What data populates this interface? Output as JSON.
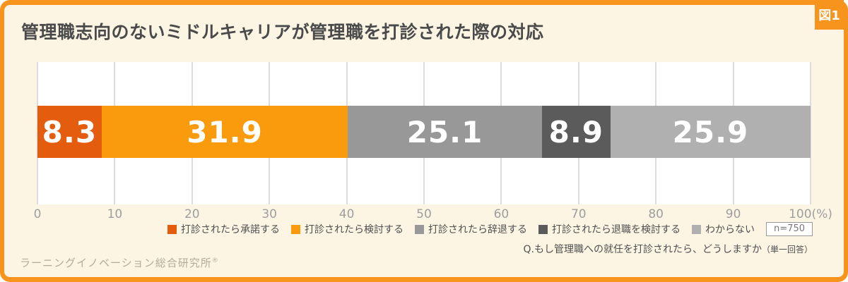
{
  "figure_label": "図1",
  "title": "管理職志向のないミドルキャリアが管理職を打診された際の対応",
  "colors": {
    "frame_orange": "#F7941E",
    "page_background": "#FCF5E4",
    "plot_background": "#FFFFFF",
    "gridline": "#DCDCDC",
    "title_text": "#4A4A4A",
    "tick_text": "#9E9E9E",
    "legend_text": "#4F4F4F",
    "footer_text": "#B3AA99",
    "bar_value_text": "#FFFFFF"
  },
  "chart_data": {
    "type": "bar",
    "stacked": true,
    "orientation": "horizontal",
    "title": "管理職職志向のないミドルキャリアが管理職を打診された際の対応",
    "unit": "%",
    "xlim": [
      0,
      100
    ],
    "x_ticks": [
      0,
      10,
      20,
      30,
      40,
      50,
      60,
      70,
      80,
      90,
      100
    ],
    "x_tick_labels": [
      "0",
      "10",
      "20",
      "30",
      "40",
      "50",
      "60",
      "70",
      "80",
      "90",
      "100(%)"
    ],
    "grid": true,
    "legend_position": "bottom-right",
    "series": [
      {
        "name": "打診されたら承諾する",
        "value": 8.3,
        "color": "#E45D0E"
      },
      {
        "name": "打診されたら検討する",
        "value": 31.9,
        "color": "#F99B0C"
      },
      {
        "name": "打診されたら辞退する",
        "value": 25.1,
        "color": "#989898"
      },
      {
        "name": "打診されたら退職を検討する",
        "value": 8.9,
        "color": "#5B5B5B"
      },
      {
        "name": "わからない",
        "value": 25.9,
        "color": "#B0B0B0"
      }
    ],
    "sample_size_label": "n=750"
  },
  "legend": {
    "n_label": "n=750"
  },
  "note": {
    "text": "Q.もし管理職への就任を打診されたら、どうしますか",
    "suffix": "（単一回答）"
  },
  "footer": {
    "text": "ラーニングイノベーション総合研究所",
    "mark": "®"
  }
}
